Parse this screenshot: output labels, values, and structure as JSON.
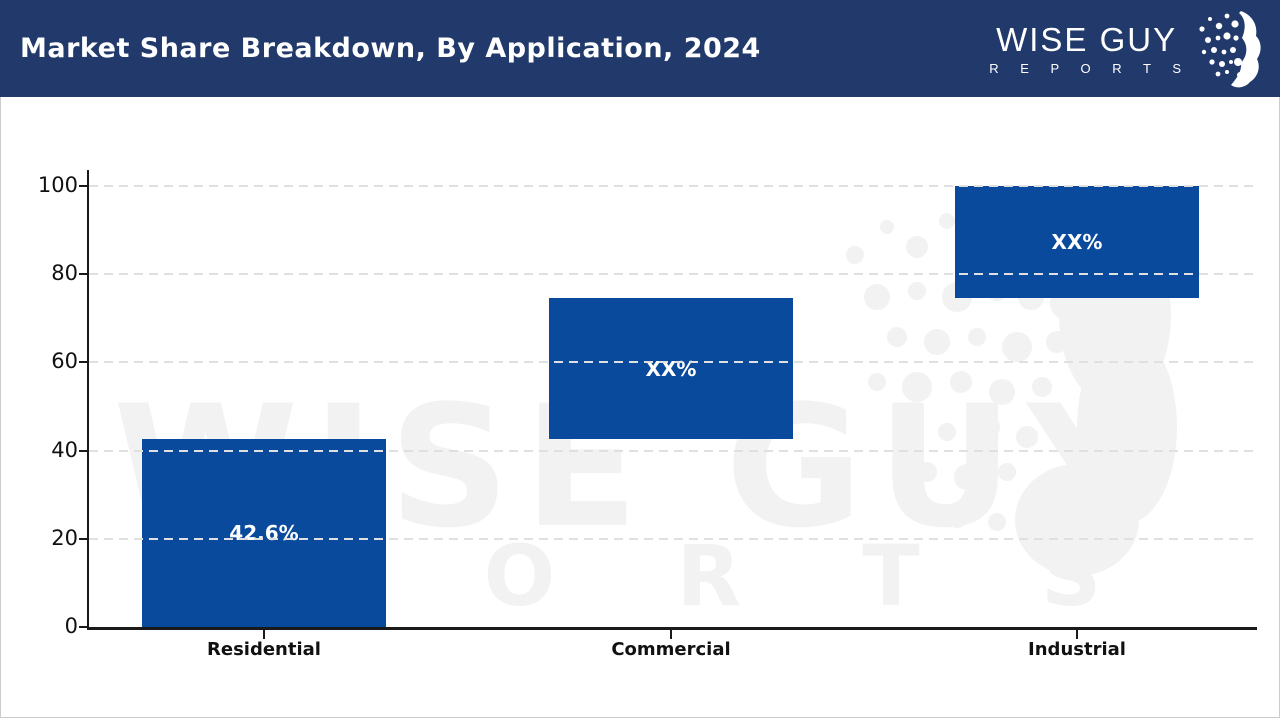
{
  "header": {
    "title": "Market Share Breakdown, By Application, 2024",
    "bg_color": "#21396b",
    "logo": {
      "line1": "WISE GUY",
      "line2": "R E P O R T S"
    }
  },
  "watermark": {
    "line1": "WISE GUY",
    "line2": "P O R T S"
  },
  "chart_data": {
    "type": "bar",
    "subtype": "stepped-waterfall-segments",
    "title": "Market Share Breakdown, By Application, 2024",
    "categories": [
      "Residential",
      "Commercial",
      "Industrial"
    ],
    "segments": [
      {
        "category": "Residential",
        "start": 0,
        "end": 42.6,
        "label": "42.6%"
      },
      {
        "category": "Commercial",
        "start": 42.6,
        "end": 74.5,
        "label": "XX%"
      },
      {
        "category": "Industrial",
        "start": 74.5,
        "end": 100,
        "label": "XX%"
      }
    ],
    "yticks": [
      0,
      20,
      40,
      60,
      80,
      100
    ],
    "ylim": [
      0,
      100
    ],
    "xlabel": "",
    "ylabel": "",
    "grid": true,
    "grid_style": "dashed",
    "bar_color": "#0a4a9d",
    "label_color": "#ffffff",
    "legend": "none"
  }
}
